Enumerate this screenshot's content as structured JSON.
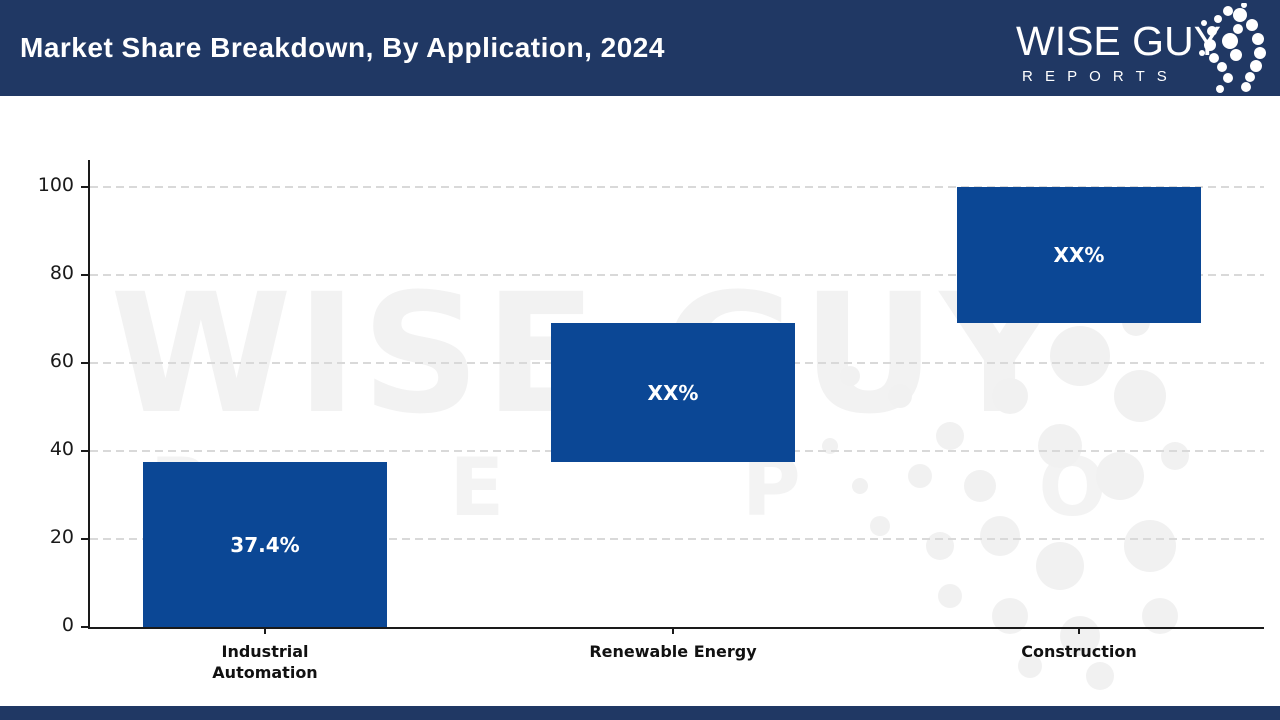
{
  "header": {
    "title": "Market Share Breakdown, By Application, 2024",
    "logo": {
      "name": "WISE GUY",
      "subtitle": "R E P O R T S"
    }
  },
  "watermark": {
    "line1": "WISE GUY",
    "line2": "R E P O R T S"
  },
  "colors": {
    "header_bg": "#203864",
    "footer_bg": "#203864",
    "bar": "#0b4795",
    "grid": "#d9d9d9",
    "axis": "#1a1a1a",
    "bar_label": "#ffffff",
    "watermark": "#f2f2f2"
  },
  "chart_data": {
    "type": "bar",
    "subtype": "waterfall",
    "title": "Market Share Breakdown, By Application, 2024",
    "categories": [
      "Industrial\nAutomation",
      "Renewable Energy",
      "Construction"
    ],
    "segments": [
      {
        "category": "Industrial Automation",
        "start": 0,
        "end": 37.4,
        "label": "37.4%"
      },
      {
        "category": "Renewable Energy",
        "start": 37.4,
        "end": 69,
        "label": "XX%"
      },
      {
        "category": "Construction",
        "start": 69,
        "end": 100,
        "label": "XX%"
      }
    ],
    "xlabel": "",
    "ylabel": "",
    "ylim": [
      0,
      100
    ],
    "yticks": [
      0,
      20,
      40,
      60,
      80,
      100
    ],
    "grid": "horizontal-dashed",
    "legend": "none",
    "bar_color": "#0b4795",
    "value_label_color": "#ffffff"
  }
}
